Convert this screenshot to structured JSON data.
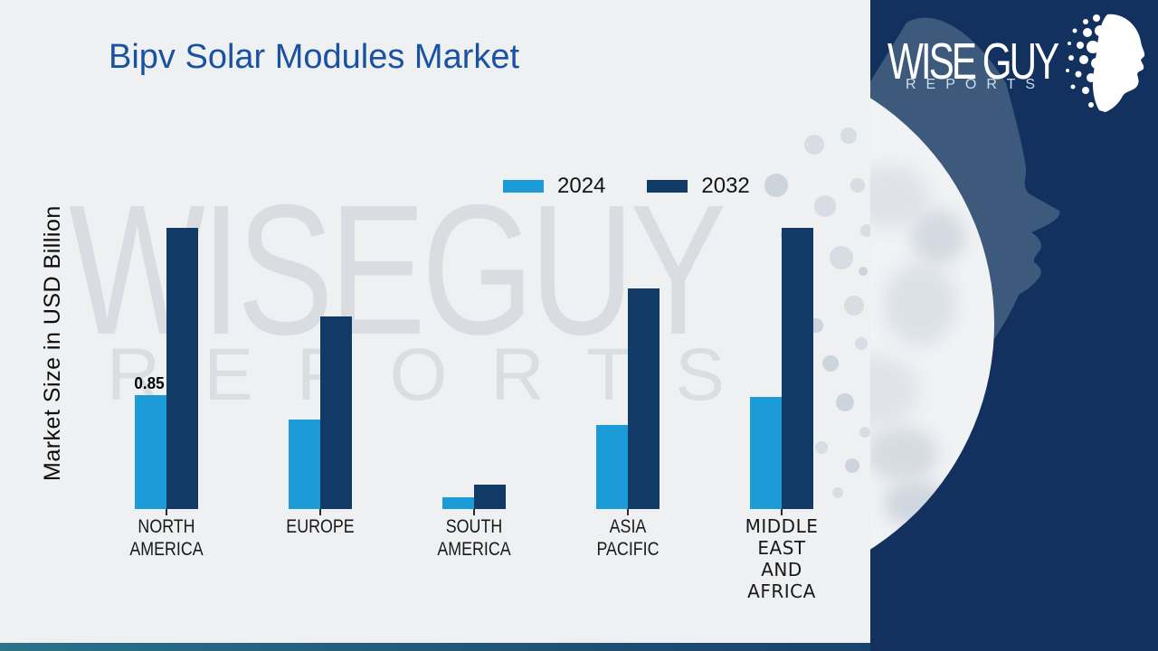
{
  "page": {
    "background": "#eef0f2"
  },
  "title": {
    "text": "Bipv Solar Modules Market",
    "color": "#1a52a2"
  },
  "brand": {
    "wordmark": "WISE GUY",
    "sub": "REPORTS",
    "panel_color": "#12315e",
    "face_silhouette_color": "#3d5a7c",
    "text_color": "#ffffff",
    "sub_text_color": "#cbdeed"
  },
  "watermark": {
    "wordmark": "WISEGUY",
    "sub": "REPORTS"
  },
  "chart_data": {
    "type": "bar",
    "title": "Bipv Solar Modules Market",
    "xlabel": "",
    "ylabel": "Market Size in USD Billion",
    "unit": "USD Billion",
    "categories": [
      "NORTH AMERICA",
      "EUROPE",
      "SOUTH AMERICA",
      "ASIA PACIFIC",
      "MIDDLE EAST AND AFRICA"
    ],
    "categories_display": [
      [
        "NORTH",
        "AMERICA"
      ],
      [
        "EUROPE"
      ],
      [
        "SOUTH",
        "AMERICA"
      ],
      [
        "ASIA",
        "PACIFIC"
      ],
      [
        "MIDDLE",
        "EAST",
        "AND",
        "AFRICA"
      ]
    ],
    "series": [
      {
        "name": "2024",
        "color": "#1b9cd9",
        "values": [
          0.85,
          0.67,
          0.09,
          0.63,
          0.84
        ]
      },
      {
        "name": "2032",
        "color": "#123a66",
        "values": [
          2.1,
          1.44,
          0.18,
          1.65,
          2.1
        ]
      }
    ],
    "annotations": [
      {
        "series": "2024",
        "category_index": 0,
        "text": "0.85"
      }
    ],
    "legend_position": "top-center",
    "grid": false,
    "ylim": [
      0,
      2.4
    ]
  },
  "footer": {
    "gradient_colors": [
      "#2a7389",
      "#143764"
    ]
  }
}
